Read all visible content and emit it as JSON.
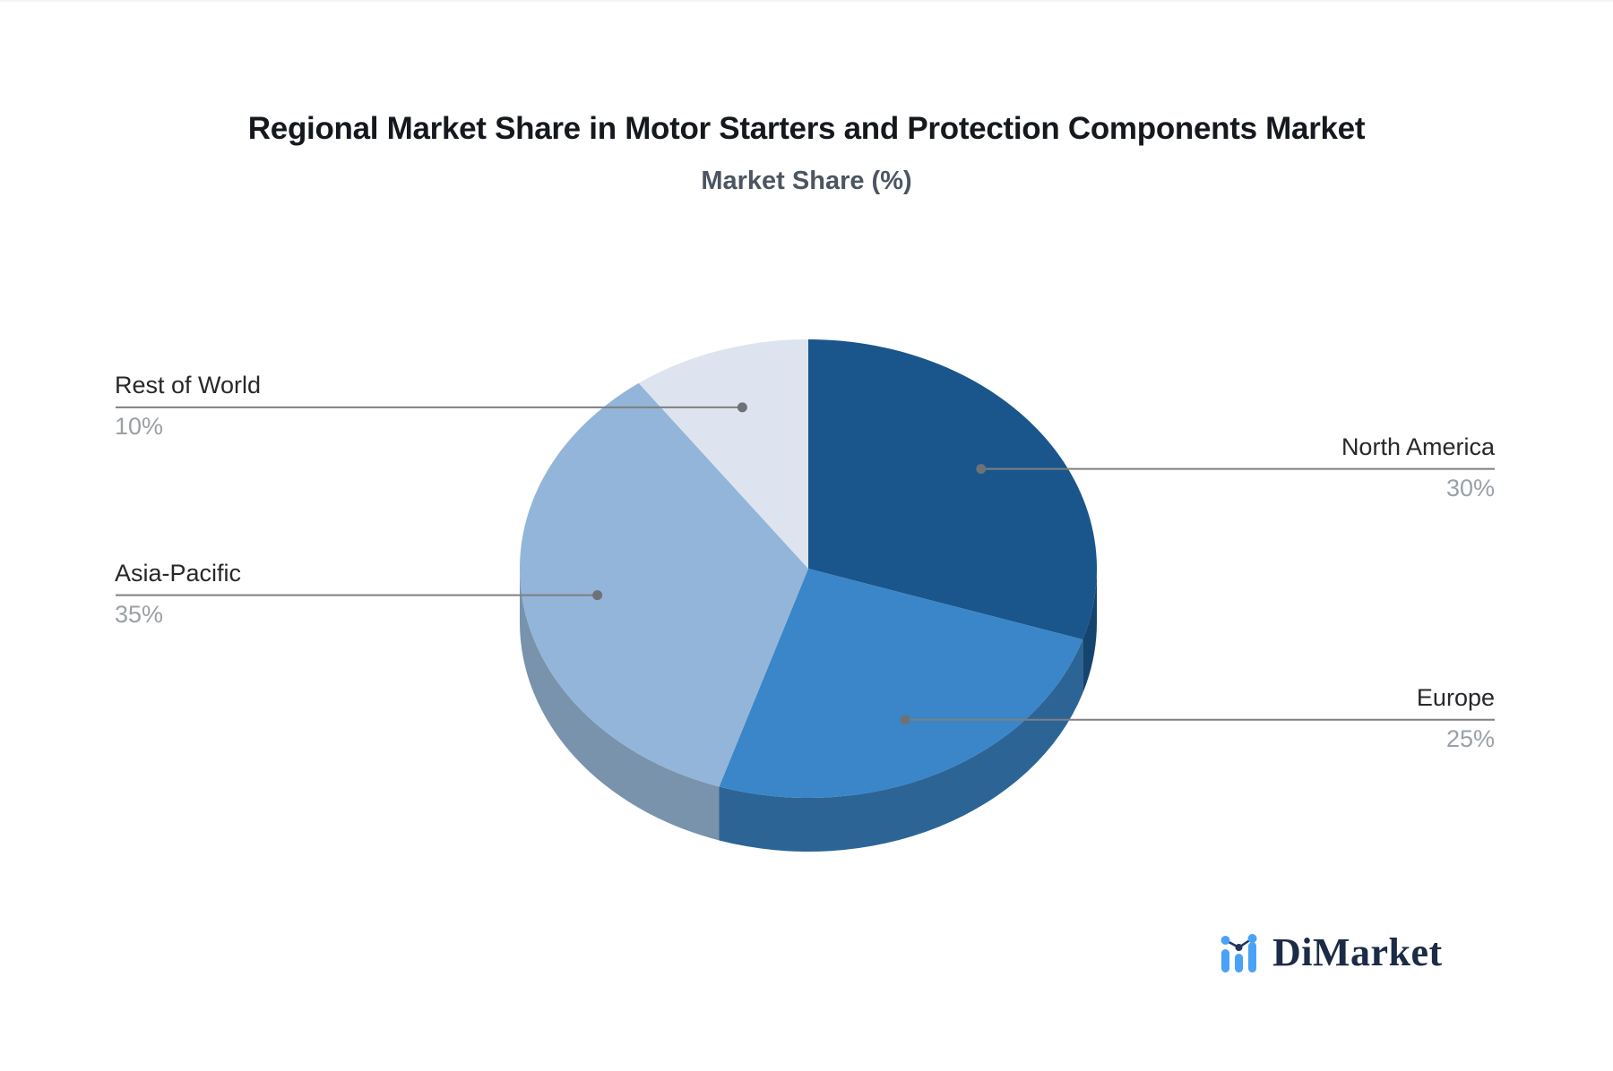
{
  "header": {
    "title": "Regional Market Share in Motor Starters and Protection Components Market",
    "subtitle": "Market Share (%)"
  },
  "chart_data": {
    "type": "pie",
    "title": "Regional Market Share in Motor Starters and Protection Components Market",
    "subtitle": "Market Share (%)",
    "unit": "%",
    "effect": "3d",
    "start_angle": "12-oclock",
    "direction": "clockwise",
    "legend_position": "none",
    "slices": [
      {
        "label": "North America",
        "value": 30,
        "display": "30%",
        "label_side": "right",
        "color": "#1a568c",
        "depth_color": "#15456f"
      },
      {
        "label": "Europe",
        "value": 25,
        "display": "25%",
        "label_side": "right",
        "color": "#3a86c8",
        "depth_color": "#2d6496"
      },
      {
        "label": "Asia-Pacific",
        "value": 35,
        "display": "35%",
        "label_side": "left",
        "color": "#93b5d9",
        "depth_color": "#7893ab"
      },
      {
        "label": "Rest of World",
        "value": 10,
        "display": "10%",
        "label_side": "left",
        "color": "#dde4ef",
        "depth_color": "#bcc7d8"
      }
    ],
    "annotation_style": {
      "line_color": "#7f7f7f",
      "marker_color": "#6e7277",
      "label_color": "#26282b",
      "value_color": "#9aa0a6"
    }
  },
  "brand": {
    "name": "DiMarket"
  }
}
